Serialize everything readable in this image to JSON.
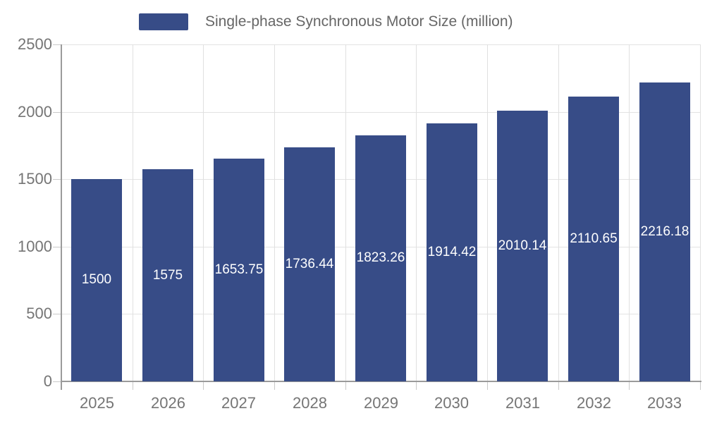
{
  "legend": {
    "label": "Single-phase Synchronous Motor Size (million)",
    "swatch_color": "#374C87"
  },
  "chart_data": {
    "type": "bar",
    "title": "Single-phase Synchronous Motor Size (million)",
    "categories": [
      "2025",
      "2026",
      "2027",
      "2028",
      "2029",
      "2030",
      "2031",
      "2032",
      "2033"
    ],
    "series": [
      {
        "name": "Single-phase Synchronous Motor Size (million)",
        "values": [
          1500,
          1575,
          1653.75,
          1736.44,
          1823.26,
          1914.42,
          2010.14,
          2110.65,
          2216.18
        ]
      }
    ],
    "value_labels": [
      "1500",
      "1575",
      "1653.75",
      "1736.44",
      "1823.26",
      "1914.42",
      "2010.14",
      "2110.65",
      "2216.18"
    ],
    "xlabel": "",
    "ylabel": "",
    "ylim": [
      0,
      2500
    ],
    "yticks": [
      0,
      500,
      1000,
      1500,
      2000,
      2500
    ],
    "grid": true,
    "legend_position": "top",
    "bar_color": "#374C87",
    "bar_label_color": "#ffffff",
    "axis_color": "#9b9b9b",
    "grid_color": "#e3e3e3",
    "tick_text_color": "#757575",
    "legend_text_color": "#666666",
    "background_color": "#ffffff"
  }
}
